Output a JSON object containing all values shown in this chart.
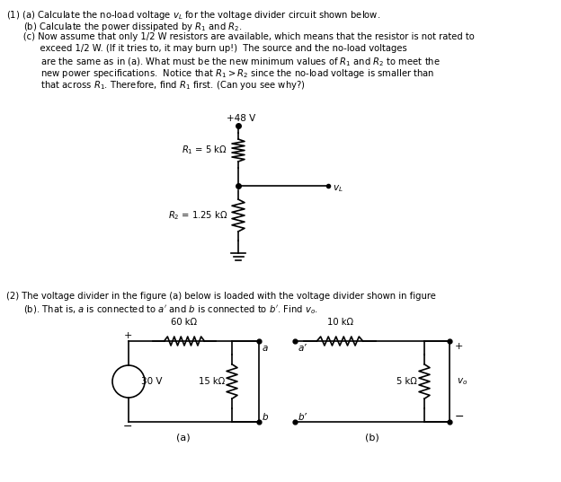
{
  "bg_color": "#ffffff",
  "text_color": "#000000",
  "fig_width": 6.24,
  "fig_height": 5.37,
  "dpi": 100,
  "paragraph1_lines": [
    "(1) (a) Calculate the no-load voltage $v_L$ for the voltage divider circuit shown below.",
    "      (b) Calculate the power dissipated by $R_1$ and $R_2$.",
    "      (c) Now assume that only 1/2 W resistors are available, which means that the resistor is not rated to",
    "            exceed 1/2 W. (If it tries to, it may burn up!)  The source and the no-load voltages",
    "            are the same as in (a). What must be the new minimum values of $R_1$ and $R_2$ to meet the",
    "            new power specifications.  Notice that $R_1 > R_2$ since the no-load voltage is smaller than",
    "            that across $R_1$. Therefore, find $R_1$ first. (Can you see why?)"
  ],
  "paragraph2_lines": [
    "(2) The voltage divider in the figure (a) below is loaded with the voltage divider shown in figure",
    "      (b). That is, $a$ is connected to $a'$ and $b$ is connected to $b'$. Find $v_o$."
  ],
  "circuit1": {
    "plus48_label": "+48 V",
    "R1_label": "$R_1$ = 5 kΩ",
    "R2_label": "$R_2$ = 1.25 kΩ",
    "vL_label": "$v_L$"
  },
  "circuit2a": {
    "V_label": "30 V",
    "R1_label": "60 kΩ",
    "R2_label": "15 kΩ",
    "a_label": "a",
    "b_label": "b",
    "subfig_label": "(a)"
  },
  "circuit2b": {
    "R1_label": "10 kΩ",
    "R2_label": "5 kΩ",
    "a_label": "a’",
    "b_label": "b’",
    "vo_label": "$v_o$",
    "plus_label": "+",
    "minus_label": "−",
    "subfig_label": "(b)"
  }
}
